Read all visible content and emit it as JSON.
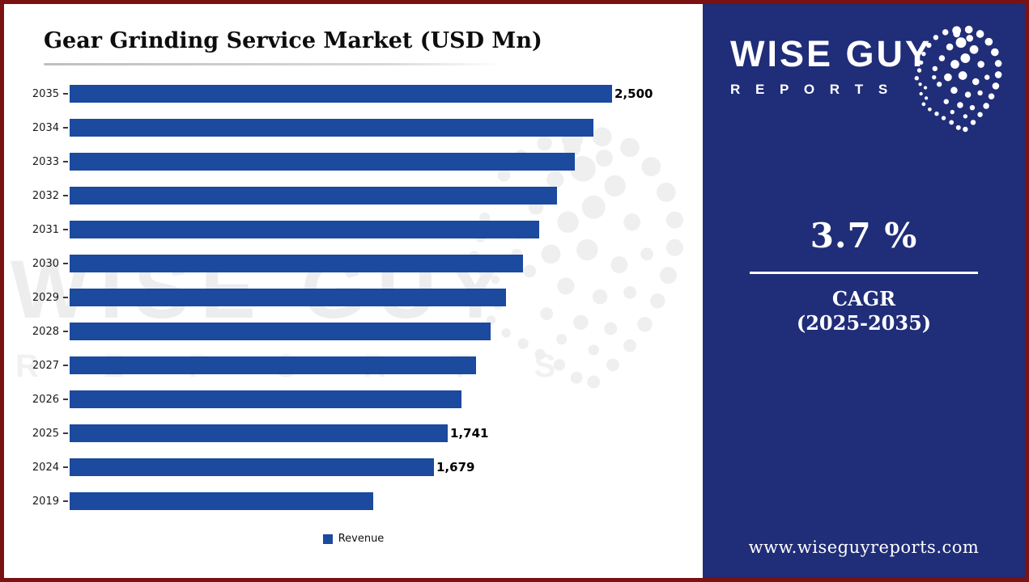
{
  "chart": {
    "title": "Gear Grinding Service Market (USD Mn)"
  },
  "chart_data": {
    "type": "bar",
    "orientation": "horizontal",
    "title": "Gear Grinding Service Market (USD Mn)",
    "categories": [
      "2035",
      "2034",
      "2033",
      "2032",
      "2031",
      "2030",
      "2029",
      "2028",
      "2027",
      "2026",
      "2025",
      "2024",
      "2019"
    ],
    "values": [
      2500,
      2414,
      2328,
      2245,
      2165,
      2088,
      2013,
      1941,
      1872,
      1806,
      1741,
      1679,
      1400
    ],
    "value_labels": [
      "2,500",
      "",
      "",
      "",
      "",
      "",
      "",
      "",
      "",
      "",
      "1,741",
      "1,679",
      ""
    ],
    "series_name": "Revenue",
    "xlim": [
      0,
      2720
    ],
    "grid": false,
    "legend_position": "bottom-center",
    "bar_color": "#1b4a9e"
  },
  "watermark": {
    "line1": "WISE GUY",
    "line2": "R E P O R T S"
  },
  "side_panel": {
    "logo_line1": "WISE GUY",
    "logo_line2": "R E P O R T S",
    "cagr_value": "3.7 %",
    "cagr_label": "CAGR",
    "cagr_period": "(2025-2035)",
    "website": "www.wiseguyreports.com"
  },
  "colors": {
    "bar": "#1b4a9e",
    "panel_bg": "#202d78",
    "border": "#7a1113",
    "watermark": "#ededed"
  }
}
